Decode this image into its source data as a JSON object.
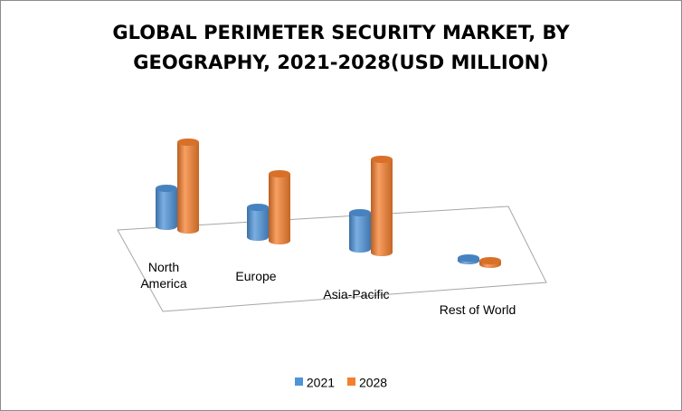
{
  "chart_data": {
    "type": "bar",
    "title_lines": [
      "GLOBAL PERIMETER SECURITY MARKET, BY",
      "GEOGRAPHY, 2021-2028(USD MILLION)"
    ],
    "categories": [
      "North America",
      "Europe",
      "Asia-Pacific",
      "Rest of World"
    ],
    "category_label_lines": [
      [
        "North",
        "America"
      ],
      [
        "Europe"
      ],
      [
        "Asia-Pacific"
      ],
      [
        "Rest of World"
      ]
    ],
    "series": [
      {
        "name": "2021",
        "color": "#4f94d9",
        "values": [
          42,
          33,
          40,
          3
        ]
      },
      {
        "name": "2028",
        "color": "#f57f2e",
        "values": [
          97,
          74,
          103,
          4
        ]
      }
    ],
    "legend_position": "bottom",
    "grid": false,
    "style": "3d-cylinder"
  }
}
